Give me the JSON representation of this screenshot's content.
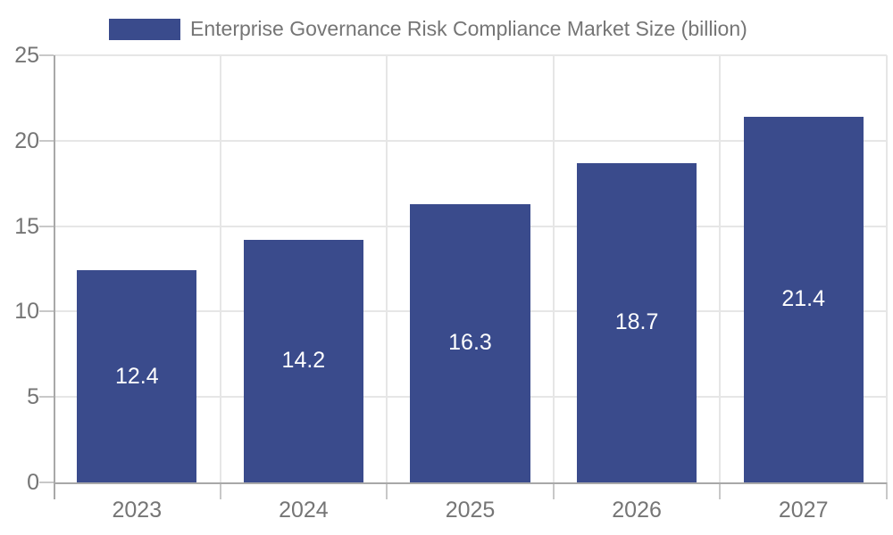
{
  "chart_data": {
    "type": "bar",
    "title": "Enterprise Governance Risk Compliance Market Size (billion)",
    "series_label": "Enterprise Governance Risk Compliance Market Size (billion)",
    "categories": [
      "2023",
      "2024",
      "2025",
      "2026",
      "2027"
    ],
    "values": [
      12.4,
      14.2,
      16.3,
      18.7,
      21.4
    ],
    "value_labels": [
      "12.4",
      "14.2",
      "16.3",
      "18.7",
      "21.4"
    ],
    "xlabel": "",
    "ylabel": "",
    "ylim": [
      0,
      25
    ],
    "yticks": [
      0,
      5,
      10,
      15,
      20,
      25
    ],
    "grid": "on",
    "legend_position": "top",
    "colors": {
      "bar": "#3A4B8C",
      "bar_value_text": "#ffffff",
      "tick_text": "#757575",
      "legend_text": "#757575",
      "axis_line": "#a8a8a8",
      "gridline": "#e6e6e6",
      "tick_mark": "#c8c8c8",
      "background": "#ffffff"
    }
  }
}
